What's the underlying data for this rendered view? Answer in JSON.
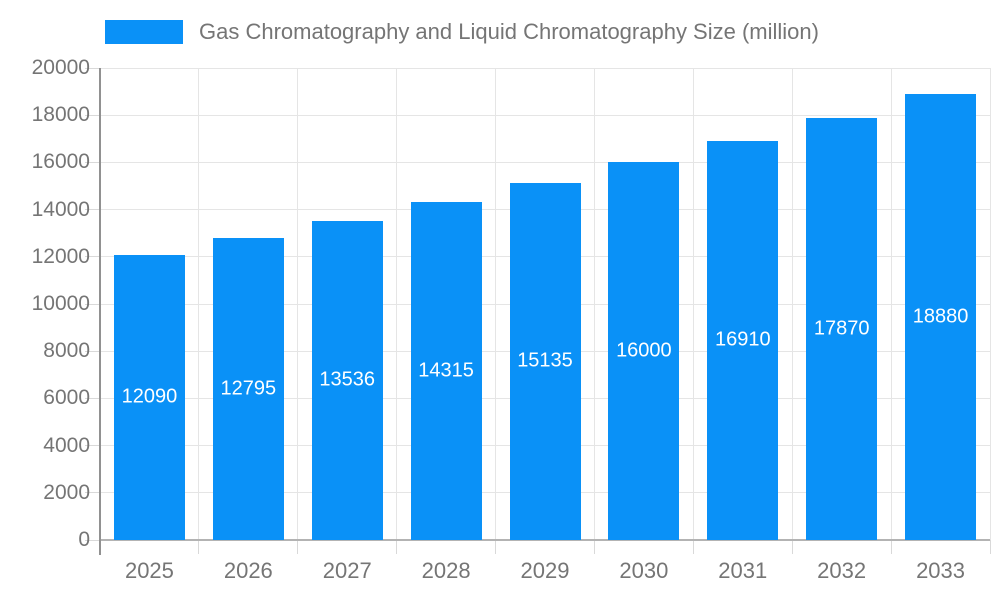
{
  "chart_data": {
    "type": "bar",
    "title": "Gas Chromatography and Liquid Chromatography Size (million)",
    "legend": [
      "Gas Chromatography and Liquid Chromatography Size (million)"
    ],
    "legend_position": "top-left",
    "categories": [
      "2025",
      "2026",
      "2027",
      "2028",
      "2029",
      "2030",
      "2031",
      "2032",
      "2033"
    ],
    "values": [
      12090,
      12795,
      13536,
      14315,
      15135,
      16000,
      16910,
      17870,
      18880
    ],
    "xlabel": "",
    "ylabel": "",
    "ylim": [
      0,
      20000
    ],
    "ytick_step": 2000,
    "grid": true,
    "colors": {
      "bar": "#0A91F7",
      "bar_value_label": "#ffffff",
      "axis_text": "#757575",
      "gridline": "#e5e5e5",
      "tick": "#d9d9d9",
      "y_axis_line": "#919191",
      "baseline": "#b3b3b3"
    }
  }
}
